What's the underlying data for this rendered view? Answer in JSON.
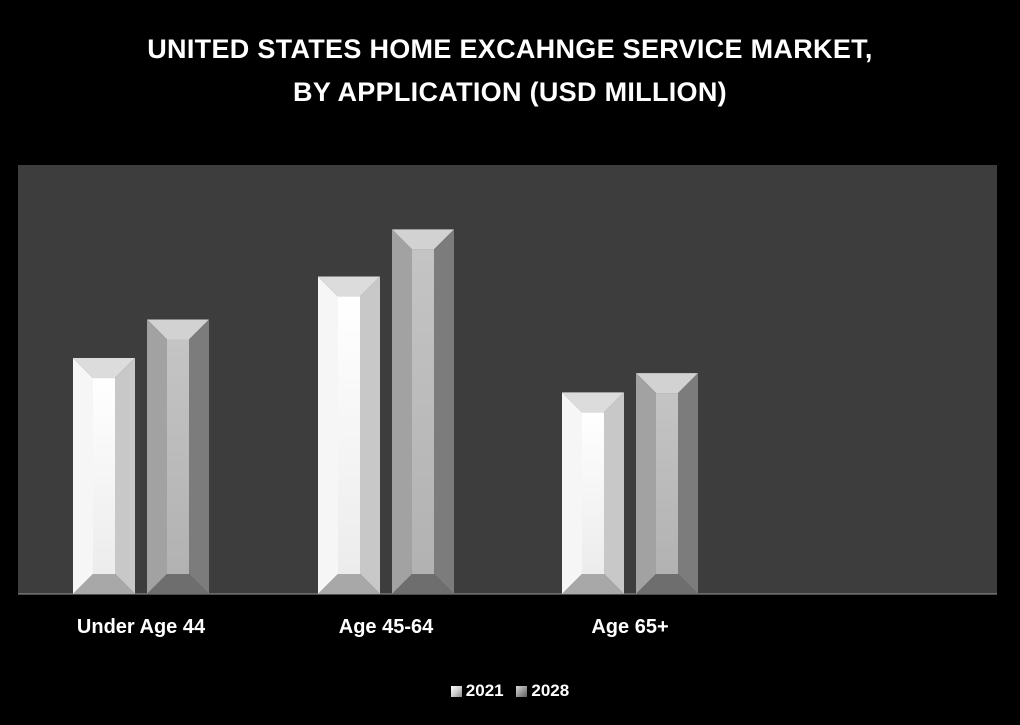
{
  "chart_data": {
    "type": "bar",
    "title_lines": [
      "UNITED STATES HOME EXCAHNGE SERVICE MARKET,",
      "BY APPLICATION (USD MILLION)"
    ],
    "categories": [
      "Under Age 44",
      "Age 45-64",
      "Age 65+"
    ],
    "series": [
      {
        "name": "2021",
        "values": [
          55,
          74,
          47
        ],
        "color": "#f2f2f2"
      },
      {
        "name": "2028",
        "values": [
          64,
          85,
          51.5
        ],
        "color": "#bdbdbd"
      }
    ],
    "ylim": [
      0,
      100
    ],
    "grid": false,
    "legend_position": "bottom",
    "plot_background": "#3d3d3d",
    "page_background": "#000000"
  }
}
